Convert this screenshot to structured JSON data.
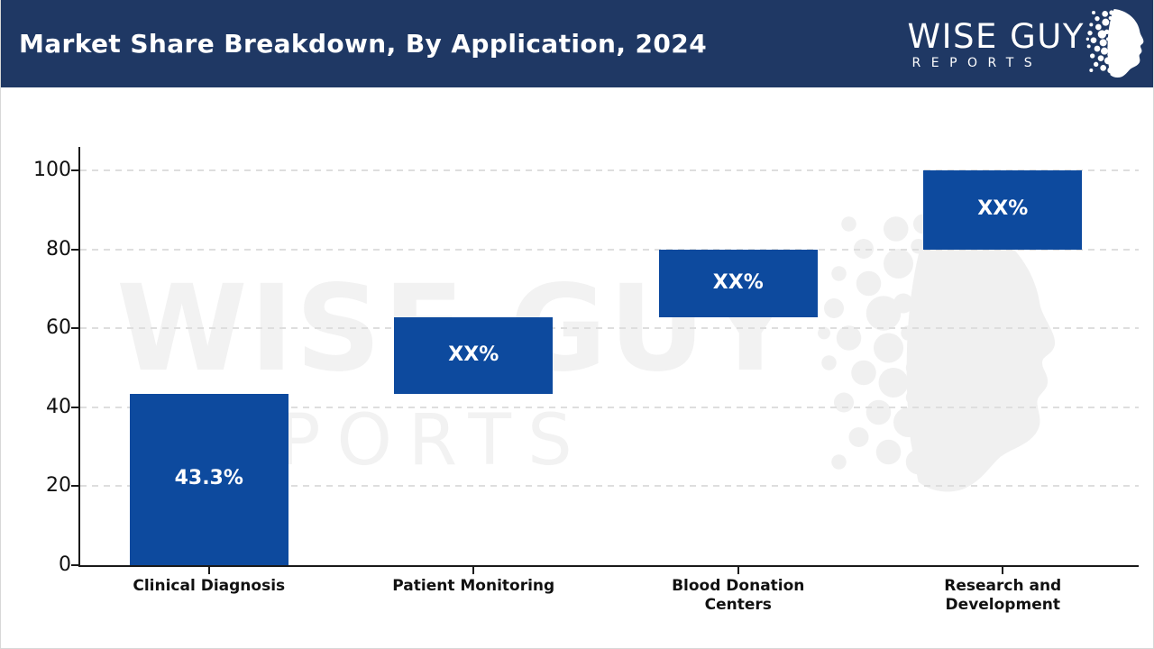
{
  "header": {
    "title": "Market Share Breakdown, By Application, 2024",
    "bg_color": "#1f3864",
    "logo": {
      "wordmark": "WISE GUY",
      "subtext": "REPORTS"
    }
  },
  "watermark": {
    "line1": "WISE GUY",
    "line2": "REPORTS"
  },
  "chart_data": {
    "type": "bar",
    "subtype": "waterfall",
    "title": "Market Share Breakdown, By Application, 2024",
    "categories": [
      "Clinical Diagnosis",
      "Patient Monitoring",
      "Blood Donation\nCenters",
      "Research and\nDevelopment"
    ],
    "segments": [
      {
        "category": "Clinical Diagnosis",
        "start": 0,
        "end": 43.3,
        "label": "43.3%"
      },
      {
        "category": "Patient Monitoring",
        "start": 43.3,
        "end": 62.8,
        "label": "XX%"
      },
      {
        "category": "Blood Donation Centers",
        "start": 62.8,
        "end": 79.8,
        "label": "XX%"
      },
      {
        "category": "Research and Development",
        "start": 79.8,
        "end": 100,
        "label": "XX%"
      }
    ],
    "ylim": [
      0,
      100
    ],
    "yticks": [
      0,
      20,
      40,
      60,
      80,
      100
    ],
    "grid": "horizontal-dashed",
    "legend": "none",
    "bar_color": "#0d4a9e",
    "bar_label_color": "#ffffff",
    "axis_color": "#1a1a1a"
  }
}
